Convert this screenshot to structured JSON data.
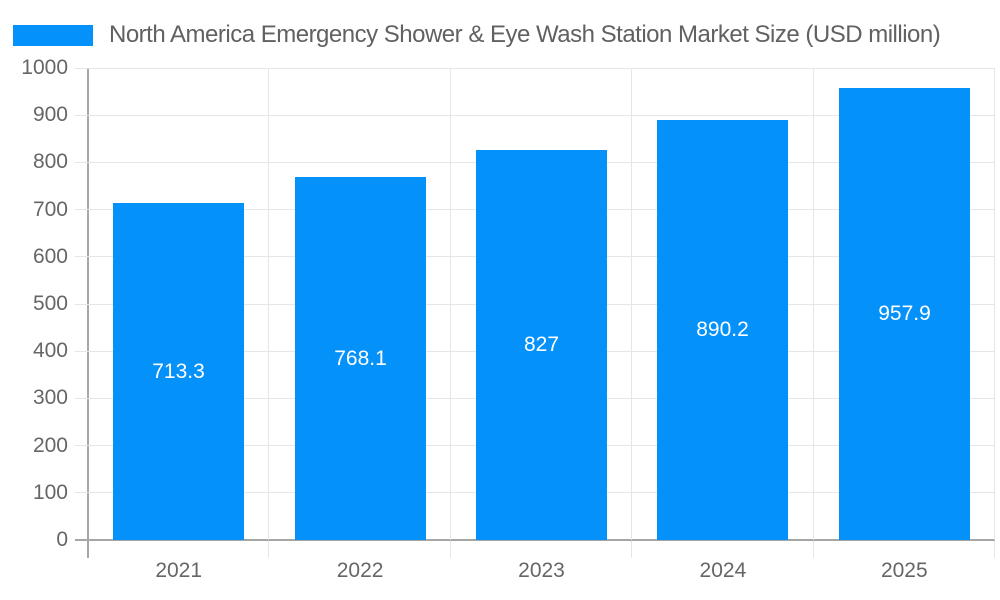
{
  "chart_data": {
    "type": "bar",
    "title": "North America Emergency Shower & Eye Wash Station Market Size (USD million)",
    "categories": [
      "2021",
      "2022",
      "2023",
      "2024",
      "2025"
    ],
    "values": [
      713.3,
      768.1,
      827,
      890.2,
      957.9
    ],
    "value_labels": [
      "713.3",
      "768.1",
      "827",
      "890.2",
      "957.9"
    ],
    "xlabel": "",
    "ylabel": "",
    "ylim": [
      0,
      1000
    ],
    "ytick_interval": 100,
    "ytick_labels": [
      "0",
      "100",
      "200",
      "300",
      "400",
      "500",
      "600",
      "700",
      "800",
      "900",
      "1000"
    ],
    "grid": true,
    "legend_position": "top-left",
    "colors": {
      "bar": "#0591fa",
      "bar_label": "#ffffff",
      "axis": "#a6a6a6",
      "grid": "#e6e6e6",
      "text": "#666666",
      "title": "#616161",
      "background": "#ffffff"
    }
  }
}
